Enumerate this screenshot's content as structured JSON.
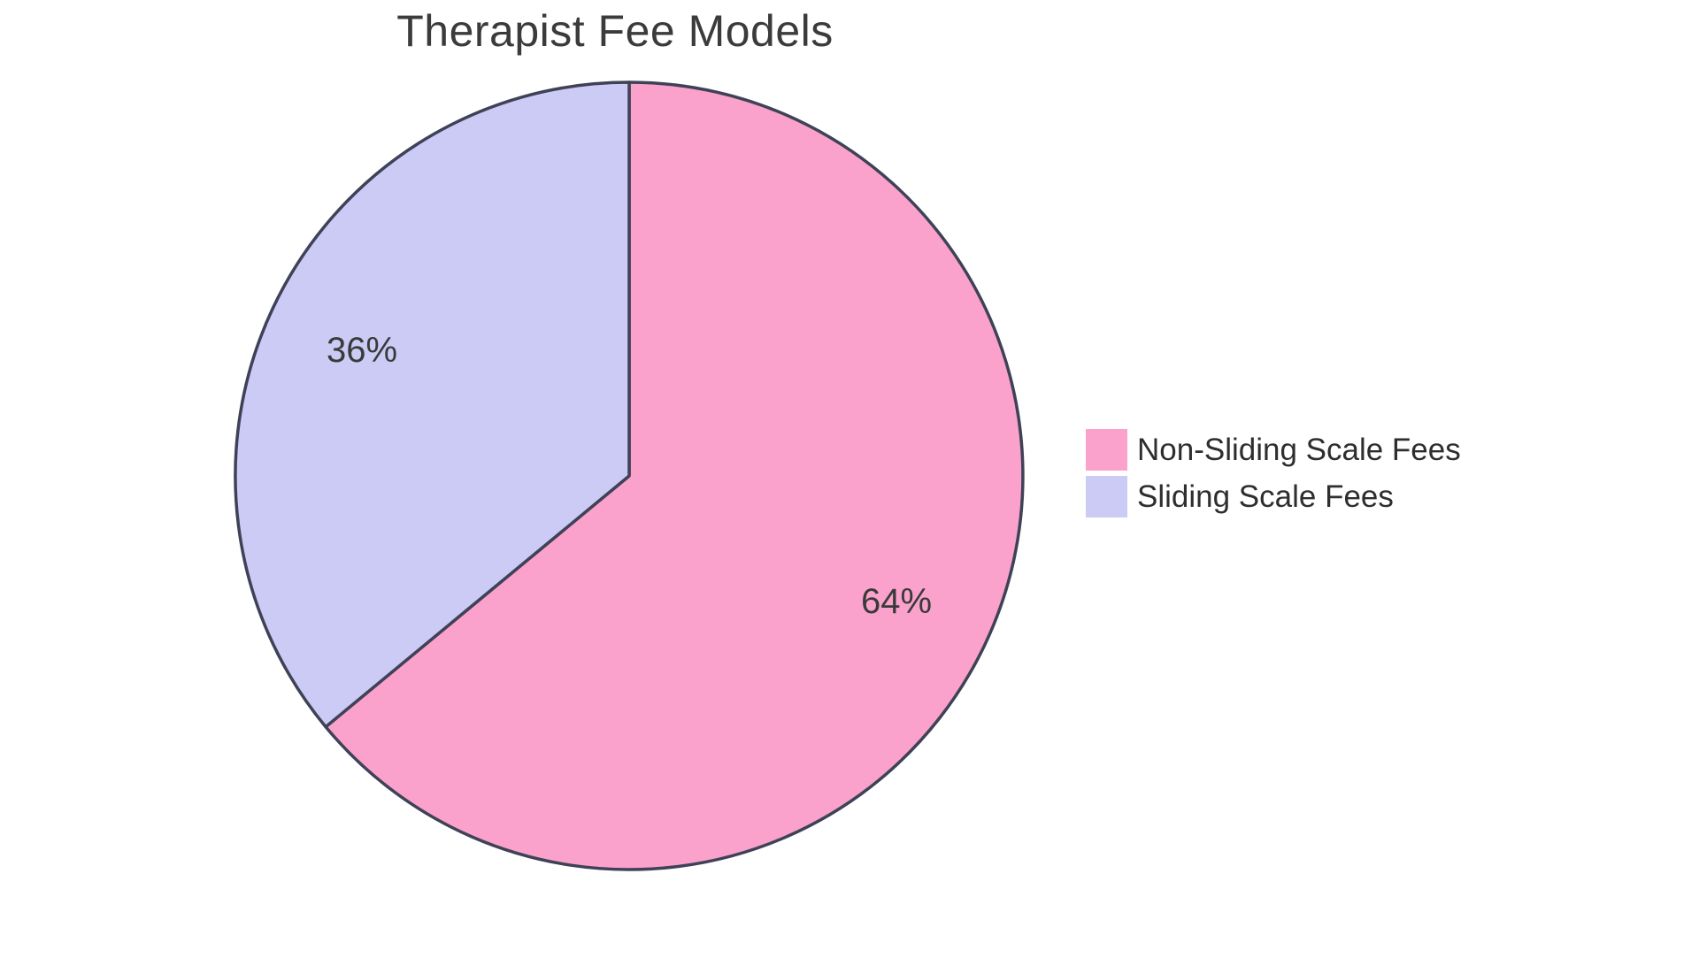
{
  "chart_data": {
    "type": "pie",
    "title": "Therapist Fee Models",
    "labels": [
      "Non-Sliding Scale Fees",
      "Sliding Scale Fees"
    ],
    "values": [
      64,
      36
    ],
    "slice_labels": [
      "64%",
      "36%"
    ],
    "colors": [
      "#FBA2CC",
      "#CBCBF6"
    ],
    "stroke_color": "#3F4257",
    "stroke_width": 3.5,
    "start_angle_deg": 0,
    "direction": "clockwise",
    "legend_position": "right",
    "title_color": "#3B3B3B",
    "slice_label_color": "#3A3A3A",
    "legend_text_color": "#2E2E2E",
    "background_color": "#FFFFFF"
  }
}
